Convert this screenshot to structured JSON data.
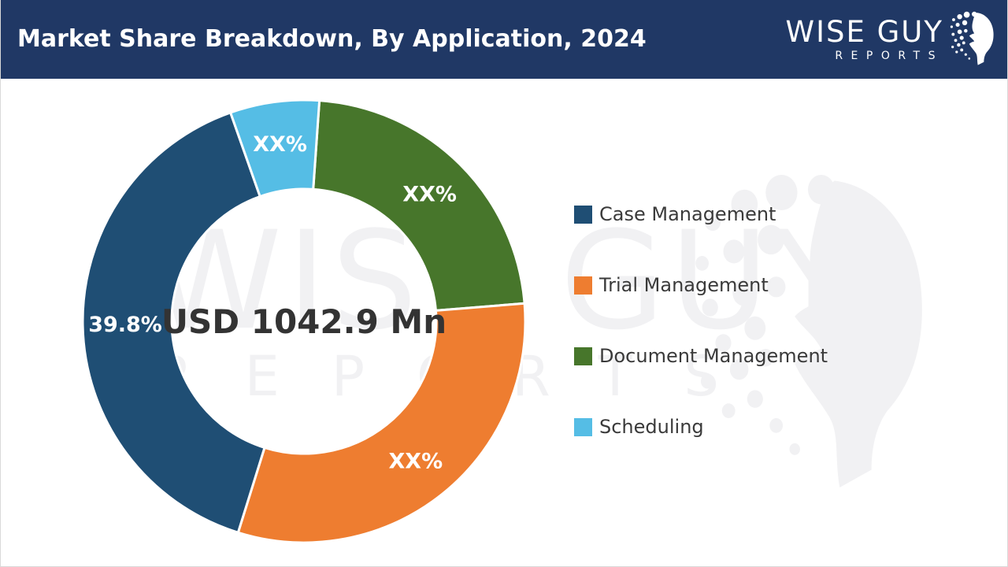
{
  "header": {
    "title": "Market Share Breakdown, By Application, 2024",
    "bg_color": "#203865",
    "logo": {
      "line1": "WISE GUY",
      "line2": "REPORTS"
    }
  },
  "watermark": {
    "line1": "WISE GUY",
    "line2": "REPORTS"
  },
  "chart_data": {
    "type": "donut",
    "title": "Market Share Breakdown, By Application, 2024",
    "center_label": "USD 1042.9 Mn",
    "start_angle_deg": 4,
    "legend_position": "right",
    "segments": [
      {
        "label": "Document Management",
        "pct": 22.6,
        "display": "XX%",
        "color": "#47762B"
      },
      {
        "label": "Trial Management",
        "pct": 31.1,
        "display": "XX%",
        "color": "#EE7D30"
      },
      {
        "label": "Case Management",
        "pct": 39.8,
        "display": "39.8%",
        "color": "#1F4E74"
      },
      {
        "label": "Scheduling",
        "pct": 6.5,
        "display": "XX%",
        "color": "#55BDE5"
      }
    ]
  },
  "legend": {
    "items": [
      {
        "label": "Case Management",
        "color": "#1F4E74"
      },
      {
        "label": "Trial Management",
        "color": "#EE7D30"
      },
      {
        "label": "Document Management",
        "color": "#47762B"
      },
      {
        "label": "Scheduling",
        "color": "#55BDE5"
      }
    ]
  }
}
